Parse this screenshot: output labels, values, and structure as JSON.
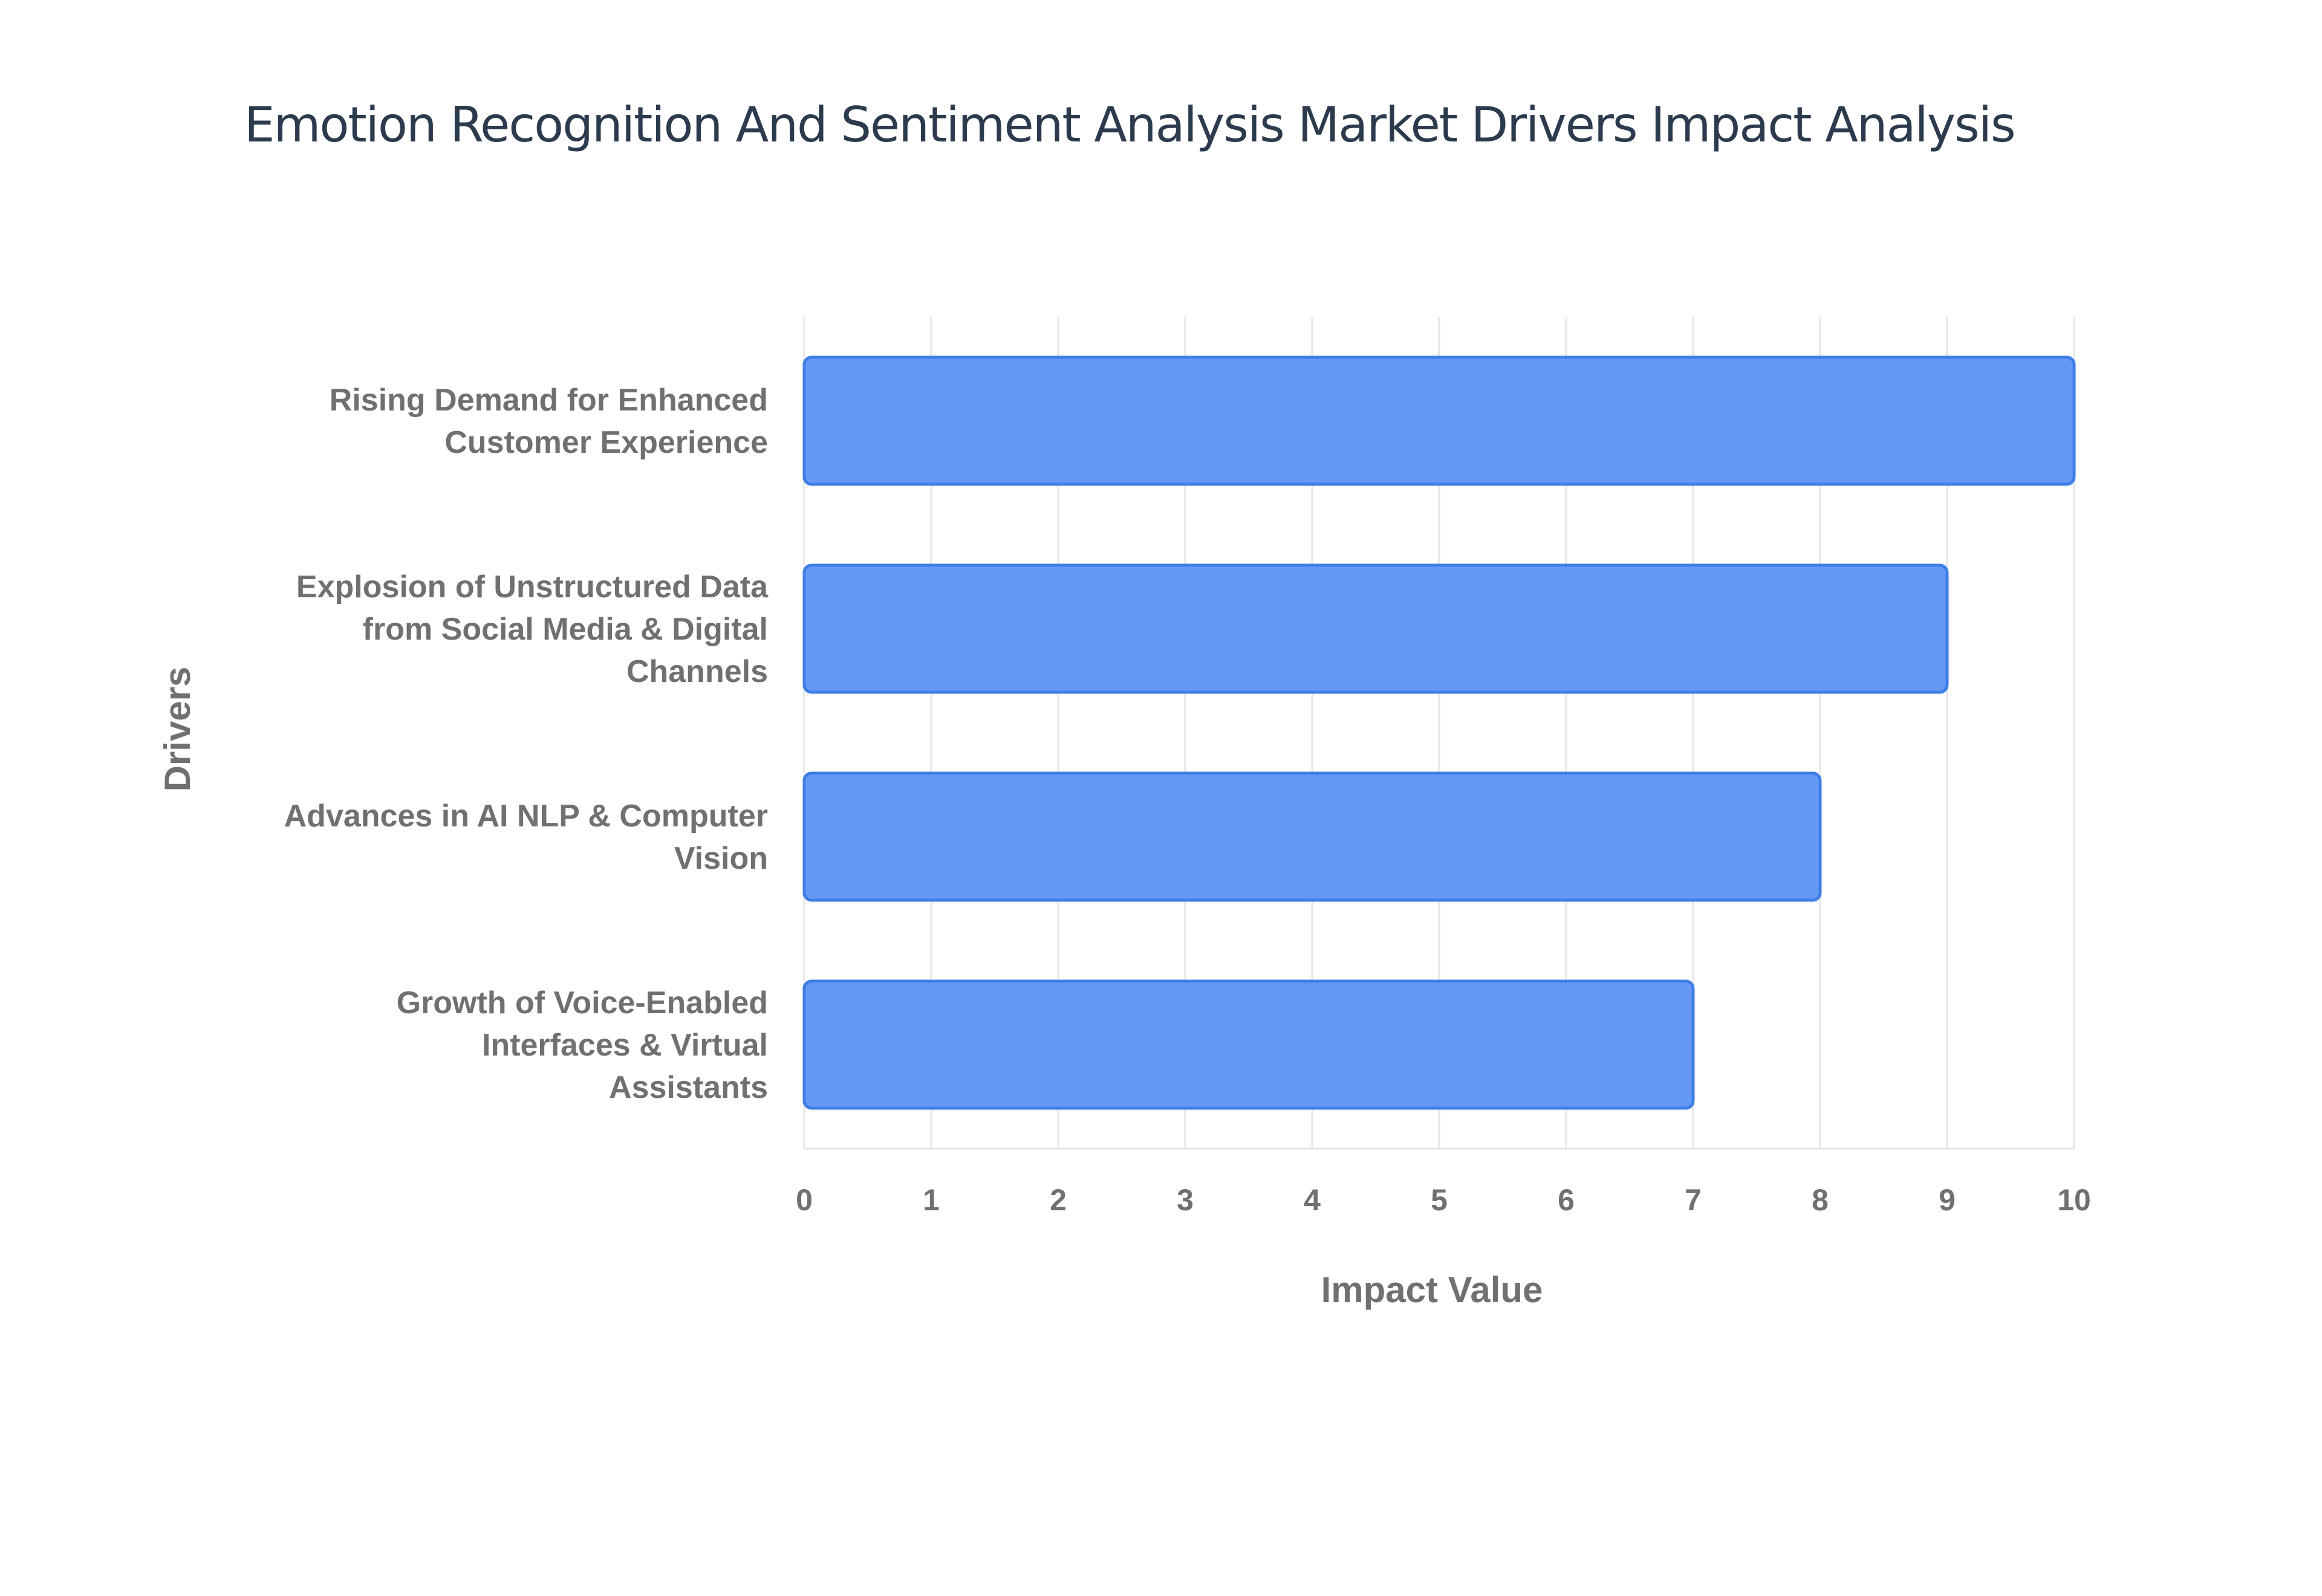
{
  "colors": {
    "bar_fill": "#6699f5",
    "bar_stroke": "#3d7fe6",
    "grid": "#e6e6e6",
    "text": "#707070",
    "title": "#2b3a4d"
  },
  "chart_data": {
    "type": "bar",
    "orientation": "horizontal",
    "title": "Emotion Recognition And Sentiment Analysis Market Drivers Impact Analysis",
    "xlabel": "Impact Value",
    "ylabel": "Drivers",
    "xlim": [
      0,
      10
    ],
    "x_ticks": [
      "0",
      "1",
      "2",
      "3",
      "4",
      "5",
      "6",
      "7",
      "8",
      "9",
      "10"
    ],
    "grid": true,
    "legend": "none",
    "categories": [
      [
        "Rising Demand for Enhanced",
        "Customer Experience"
      ],
      [
        "Explosion of Unstructured Data",
        "from Social Media & Digital",
        "Channels"
      ],
      [
        "Advances in AI NLP & Computer",
        "Vision"
      ],
      [
        "Growth of Voice-Enabled",
        "Interfaces & Virtual",
        "Assistants"
      ]
    ],
    "values": [
      10,
      9,
      8,
      7
    ]
  }
}
